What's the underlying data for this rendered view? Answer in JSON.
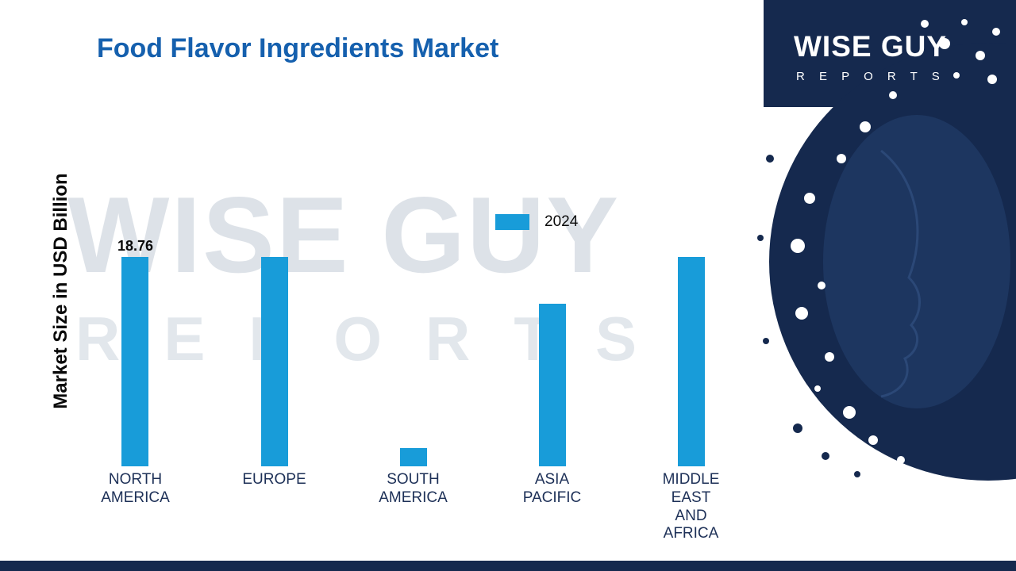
{
  "branding": {
    "logo_line1": "WISE GUY",
    "logo_line2": "R E P O R T S",
    "navy": "#15294e"
  },
  "watermark": {
    "line1": "WISE GUY",
    "line2": "REPORTS"
  },
  "chart_data": {
    "type": "bar",
    "title": "Food Flavor Ingredients Market",
    "ylabel": "Market Size in USD Billion",
    "xlabel": "",
    "legend": [
      "2024"
    ],
    "legend_position": "top-right-of-plot",
    "grid": false,
    "bar_color": "#189cd9",
    "ylim": [
      0,
      20
    ],
    "categories": [
      "NORTH AMERICA",
      "EUROPE",
      "SOUTH AMERICA",
      "ASIA PACIFIC",
      "MIDDLE EAST AND AFRICA"
    ],
    "tick_labels": [
      "NORTH\nAMERICA",
      "EUROPE",
      "SOUTH\nAMERICA",
      "ASIA\nPACIFIC",
      "MIDDLE\nEAST\nAND\nAFRICA"
    ],
    "values": [
      18.76,
      18.7,
      1.6,
      14.5,
      18.7
    ],
    "data_labels": [
      "18.76",
      "",
      "",
      "",
      ""
    ],
    "series_name": "2024"
  }
}
